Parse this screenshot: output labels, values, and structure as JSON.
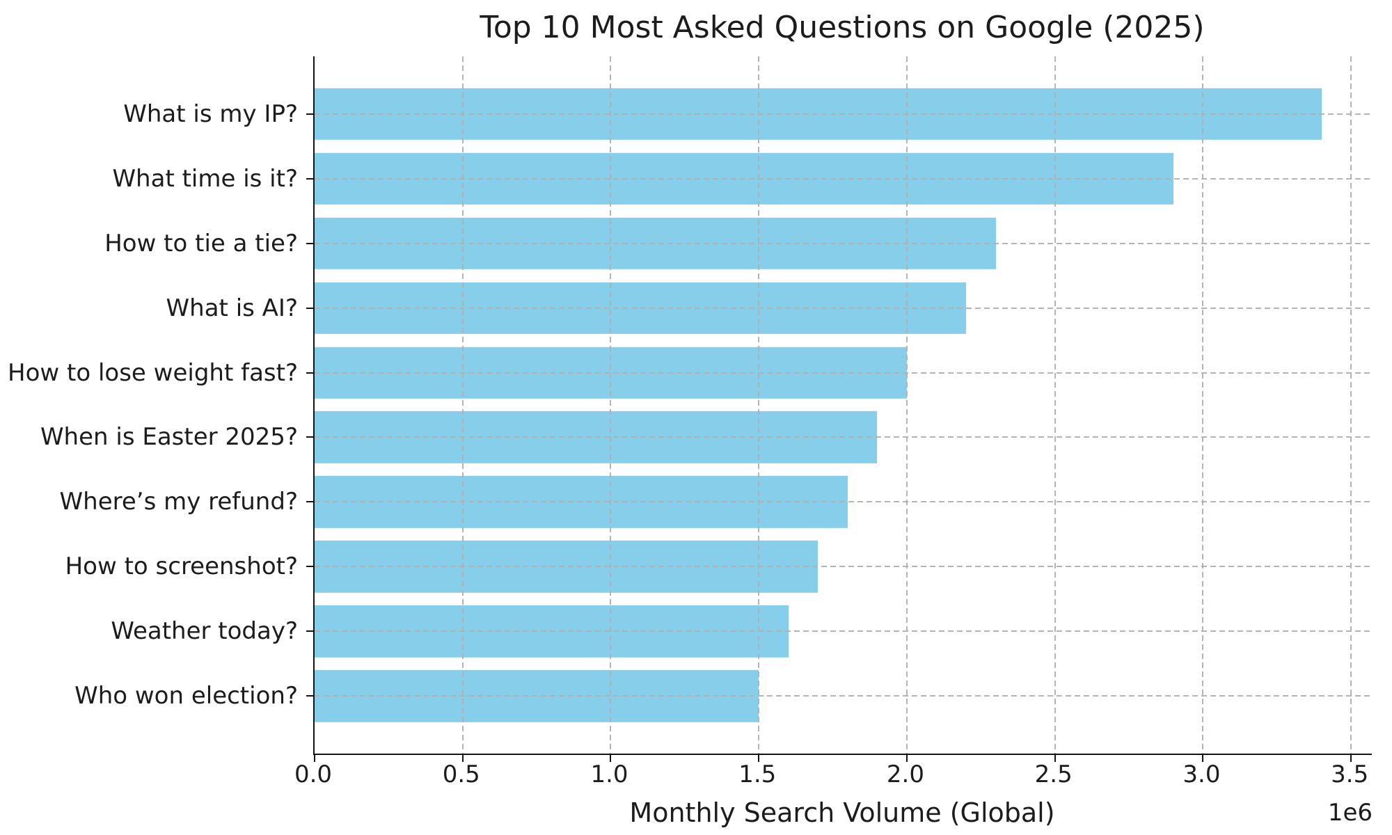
{
  "title": "Top 10 Most Asked Questions on Google (2025)",
  "chart_data": {
    "type": "bar",
    "orientation": "horizontal",
    "title": "Top 10 Most Asked Questions on Google (2025)",
    "xlabel": "Monthly Search Volume (Global)",
    "ylabel": "",
    "categories": [
      "What is my IP?",
      "What time is it?",
      "How to tie a tie?",
      "What is AI?",
      "How to lose weight fast?",
      "When is Easter 2025?",
      "Where’s my refund?",
      "How to screenshot?",
      "Weather today?",
      "Who won election?"
    ],
    "values": [
      3400000,
      2900000,
      2300000,
      2200000,
      2000000,
      1900000,
      1800000,
      1700000,
      1600000,
      1500000
    ],
    "xlim": [
      0,
      3570000
    ],
    "x_ticks": [
      0,
      500000,
      1000000,
      1500000,
      2000000,
      2500000,
      3000000,
      3500000
    ],
    "x_tick_labels": [
      "0.0",
      "0.5",
      "1.0",
      "1.5",
      "2.0",
      "2.5",
      "3.0",
      "3.5"
    ],
    "offset_text": "1e6",
    "grid": true,
    "grid_style": "dashed",
    "legend": "none",
    "bar_color": "#87CEEB",
    "grid_color": "#b0b0b0",
    "spine_color": "#141414",
    "text_color": "#1c1c1c"
  }
}
